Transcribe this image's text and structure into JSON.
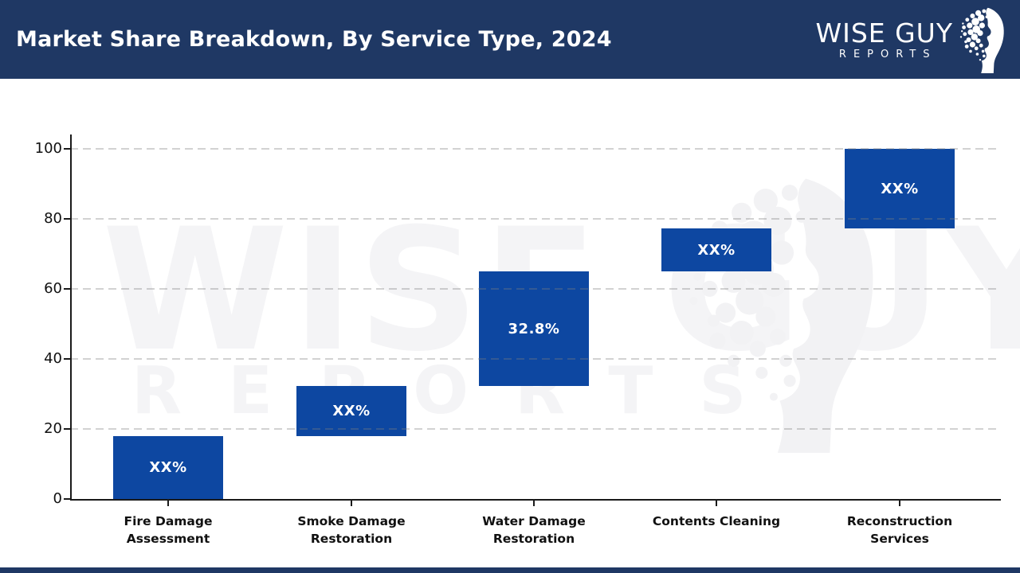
{
  "header": {
    "title": "Market Share Breakdown, By Service Type, 2024",
    "bg_color": "#1f3864",
    "logo": {
      "line1": "WISE GUY",
      "line2": "REPORTS"
    }
  },
  "watermark": {
    "line1": "WISE GUY",
    "line2": "REPORTS"
  },
  "footer": {
    "bar_color": "#1f3864"
  },
  "chart_data": {
    "type": "bar",
    "subtype": "waterfall-style floating bars",
    "title": "Market Share Breakdown, By Service Type, 2024",
    "categories": [
      "Fire Damage Assessment",
      "Smoke Damage Restoration",
      "Water Damage Restoration",
      "Contents Cleaning",
      "Reconstruction Services"
    ],
    "category_label_lines": [
      [
        "Fire Damage",
        "Assessment"
      ],
      [
        "Smoke Damage",
        "Restoration"
      ],
      [
        "Water Damage",
        "Restoration"
      ],
      [
        "Contents Cleaning"
      ],
      [
        "Reconstruction",
        "Services"
      ]
    ],
    "bars": [
      {
        "category": "Fire Damage Assessment",
        "label": "XX%",
        "start": 0,
        "end": 18
      },
      {
        "category": "Smoke Damage Restoration",
        "label": "XX%",
        "start": 18,
        "end": 32.2
      },
      {
        "category": "Water Damage Restoration",
        "label": "32.8%",
        "start": 32.2,
        "end": 65
      },
      {
        "category": "Contents Cleaning",
        "label": "XX%",
        "start": 65,
        "end": 77.2
      },
      {
        "category": "Reconstruction Services",
        "label": "XX%",
        "start": 77.2,
        "end": 100
      }
    ],
    "yticks": [
      0,
      20,
      40,
      60,
      80,
      100
    ],
    "ylim": [
      0,
      104
    ],
    "xlabel": "",
    "ylabel": "",
    "grid": "horizontal dashed, drawn above bars",
    "legend": "none",
    "bar_color": "#0d47a1",
    "bar_label_color": "#ffffff",
    "axis_color": "#1a1a1a"
  }
}
